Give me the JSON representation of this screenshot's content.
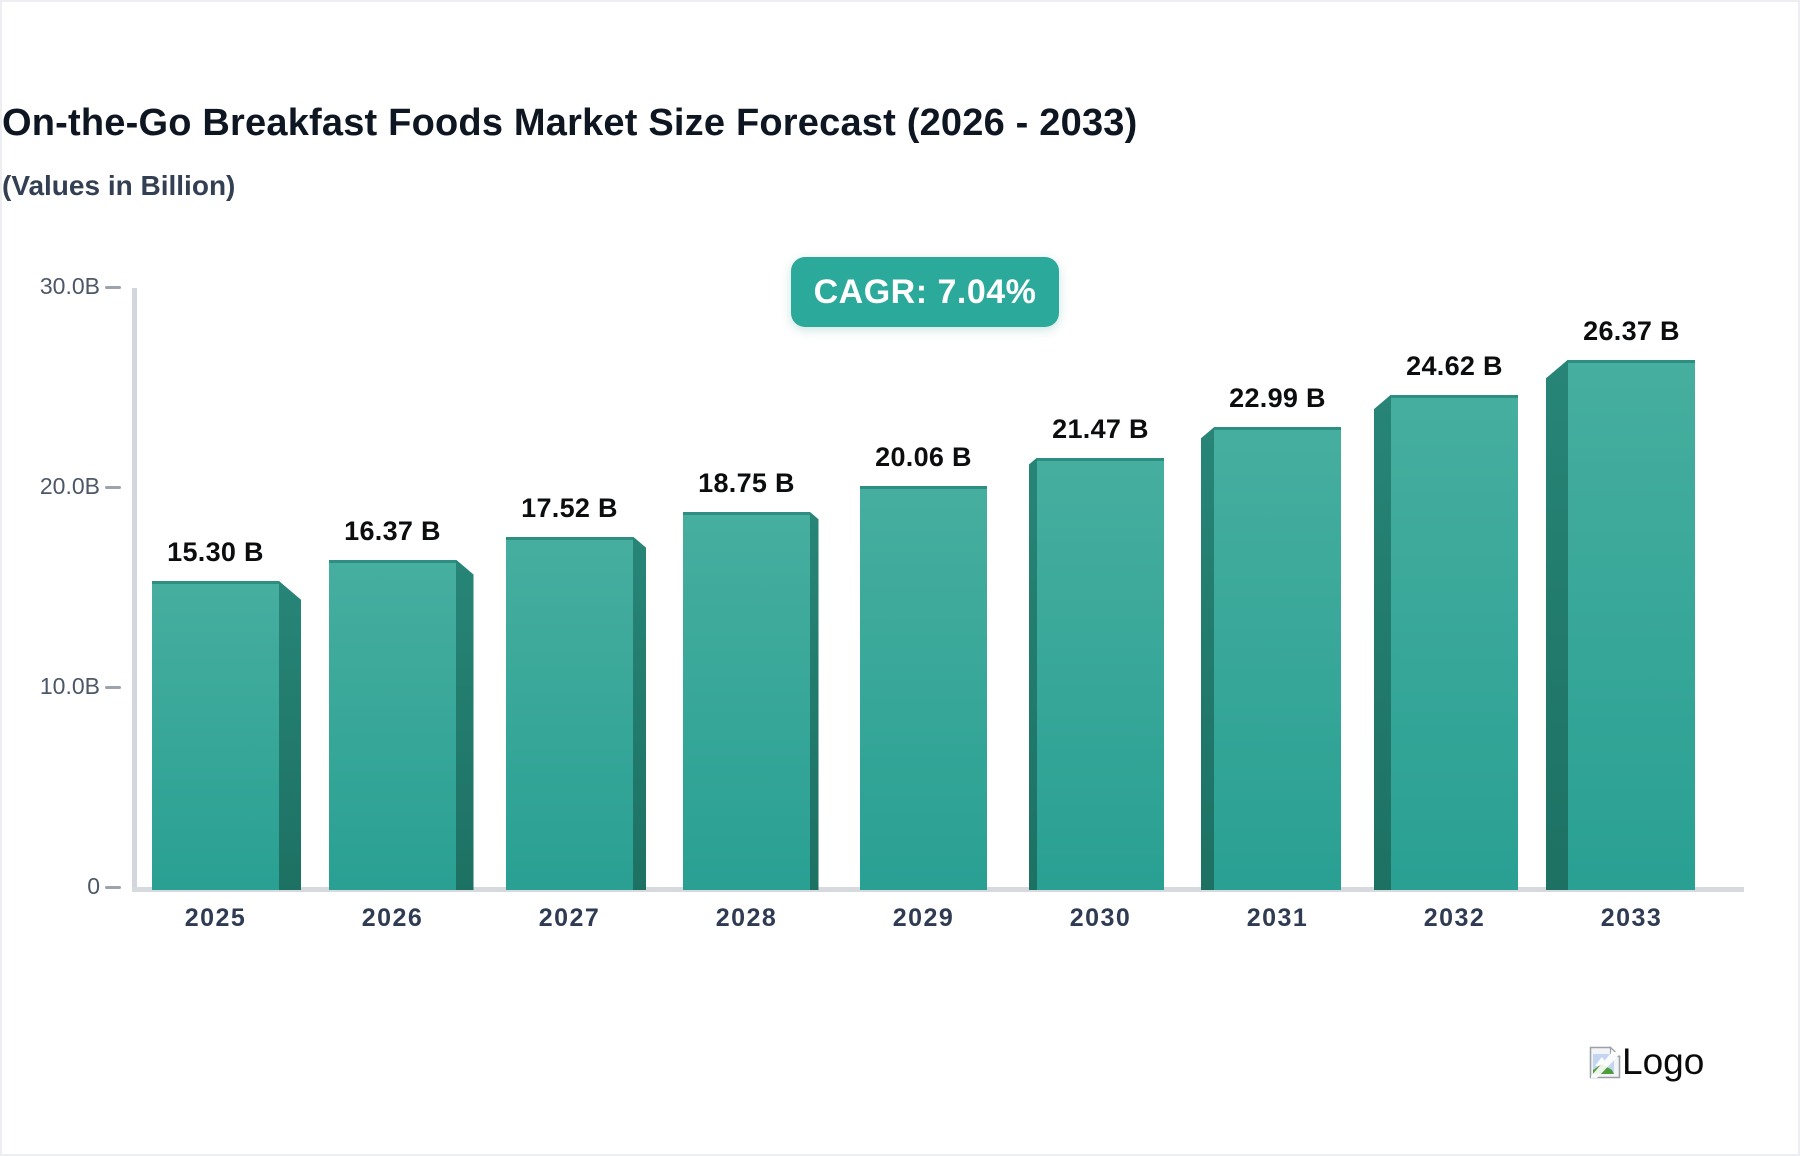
{
  "header": {
    "title": "On-the-Go Breakfast Foods Market Size Forecast (2026 - 2033)",
    "subtitle": "(Values in Billion)",
    "cagr_badge": "CAGR: 7.04%"
  },
  "footer": {
    "logo_text": "Logo"
  },
  "chart_data": {
    "type": "bar",
    "title": "On-the-Go Breakfast Foods Market Size Forecast (2026 - 2033)",
    "subtitle": "(Values in Billion)",
    "cagr": "7.04%",
    "unit": "Billion",
    "categories": [
      "2025",
      "2026",
      "2027",
      "2028",
      "2029",
      "2030",
      "2031",
      "2032",
      "2033"
    ],
    "values": [
      15.3,
      16.37,
      17.52,
      18.75,
      20.06,
      21.47,
      22.99,
      24.62,
      26.37
    ],
    "bar_labels": [
      "15.30 B",
      "16.37 B",
      "17.52 B",
      "18.75 B",
      "20.06 B",
      "21.47 B",
      "22.99 B",
      "24.62 B",
      "26.37 B"
    ],
    "xlabel": "",
    "ylabel": "",
    "ylim": [
      0,
      30
    ],
    "yticks": [
      {
        "value": 0,
        "label": "0"
      },
      {
        "value": 10,
        "label": "10.0B"
      },
      {
        "value": 20,
        "label": "20.0B"
      },
      {
        "value": 30,
        "label": "30.0B"
      }
    ],
    "grid": false,
    "legend": false,
    "style": "3d-column",
    "colors": {
      "bar_face_top": "#46ae9f",
      "bar_face_bottom": "#29a093",
      "bar_side_top": "#278577",
      "bar_side_bottom": "#1d7163",
      "bar_top_edge": "#2e8e81",
      "accent": "#2ba99b",
      "axis_line": "#d3d6dd",
      "tick_dash": "#9ca3ad",
      "tick_label": "#4c5767",
      "category_label": "#2e3b52",
      "value_label": "#0b0d0f"
    }
  }
}
